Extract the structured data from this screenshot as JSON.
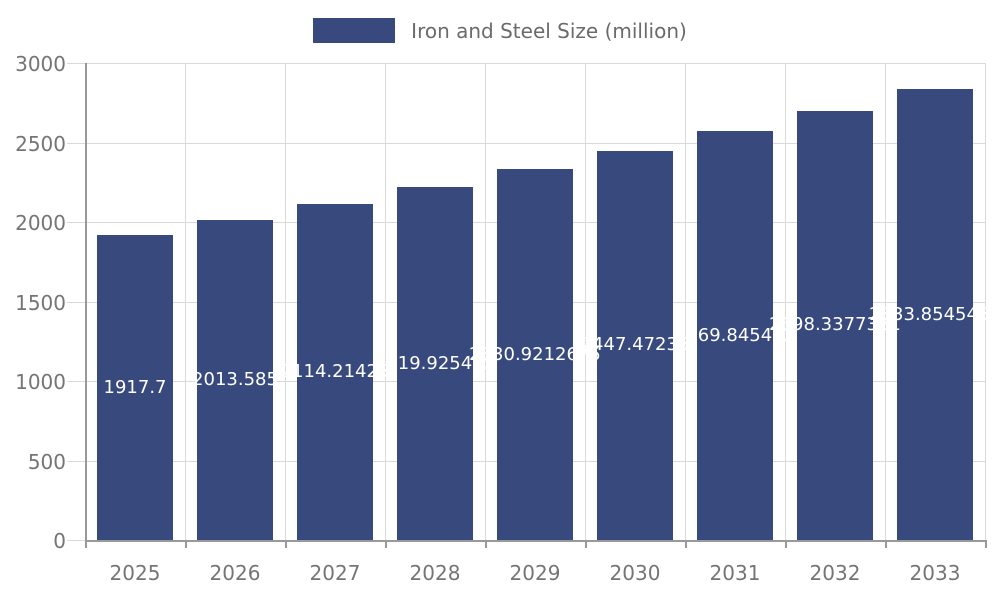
{
  "legend": {
    "label": "Iron and Steel Size (million)"
  },
  "colors": {
    "bar": "#38497d",
    "grid": "#d9d9d9",
    "axis": "#999999",
    "tick_label": "#757575",
    "legend_text": "#6b6b6b",
    "data_label": "#ffffff",
    "background": "#ffffff"
  },
  "chart_data": {
    "type": "bar",
    "title": "",
    "xlabel": "",
    "ylabel": "",
    "series_name": "Iron and Steel Size (million)",
    "categories": [
      "2025",
      "2026",
      "2027",
      "2028",
      "2029",
      "2030",
      "2031",
      "2032",
      "2033"
    ],
    "values": [
      1917.7,
      2013.585,
      2114.21425,
      2219.925445,
      2330.9212675,
      2447.47235,
      2569.845442,
      2698.3377321,
      2833.8545454
    ],
    "ylim": [
      0,
      3000
    ],
    "yticks": [
      0,
      500,
      1000,
      1500,
      2000,
      2500,
      3000
    ],
    "grid": true,
    "vertical_gridlines": true,
    "legend_position": "top-center",
    "data_label_position": "center-of-bar",
    "data_label_color": "white"
  }
}
